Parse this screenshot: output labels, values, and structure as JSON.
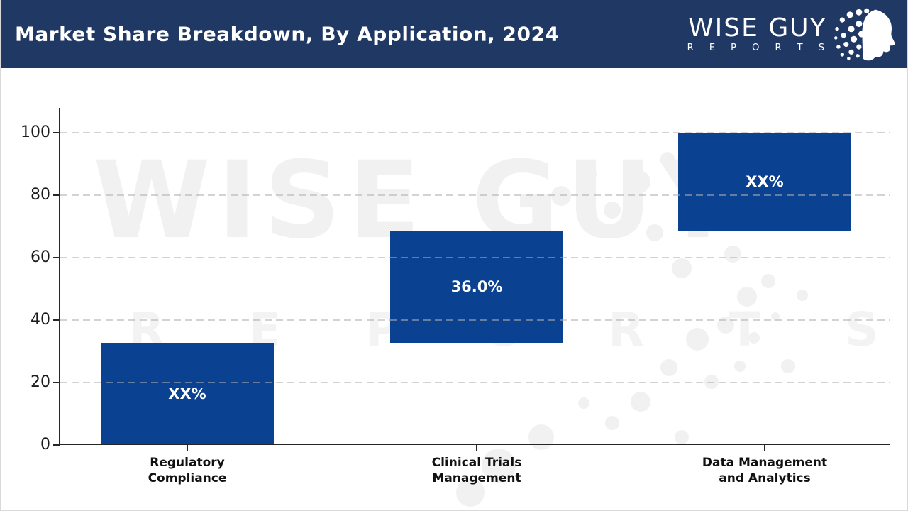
{
  "header": {
    "title": "Market Share Breakdown, By Application, 2024",
    "bg_color": "#1f3864",
    "brand_line1": "WISE GUY",
    "brand_line2": "R E P O R T S"
  },
  "watermark": {
    "line1": "WISE GUY",
    "line2": "R E P O R T S"
  },
  "chart_data": {
    "type": "bar",
    "subtype": "waterfall",
    "title": "Market Share Breakdown, By Application, 2024",
    "categories": [
      "Regulatory\nCompliance",
      "Clinical Trials\nManagement",
      "Data Management\nand Analytics"
    ],
    "segments": [
      {
        "category": "Regulatory Compliance",
        "base": 0,
        "value": 32.7,
        "label": "XX%"
      },
      {
        "category": "Clinical Trials Management",
        "base": 32.7,
        "value": 36.0,
        "label": "36.0%"
      },
      {
        "category": "Data Management and Analytics",
        "base": 68.7,
        "value": 31.3,
        "label": "XX%"
      }
    ],
    "yticks": [
      0,
      20,
      40,
      60,
      80,
      100
    ],
    "ylim": [
      0,
      104
    ],
    "xlabel": "",
    "ylabel": "",
    "grid": "dashed-horizontal",
    "legend": "none",
    "bar_color": "#0a4191",
    "axis_color": "#262626",
    "label_color": "#ffffff"
  }
}
